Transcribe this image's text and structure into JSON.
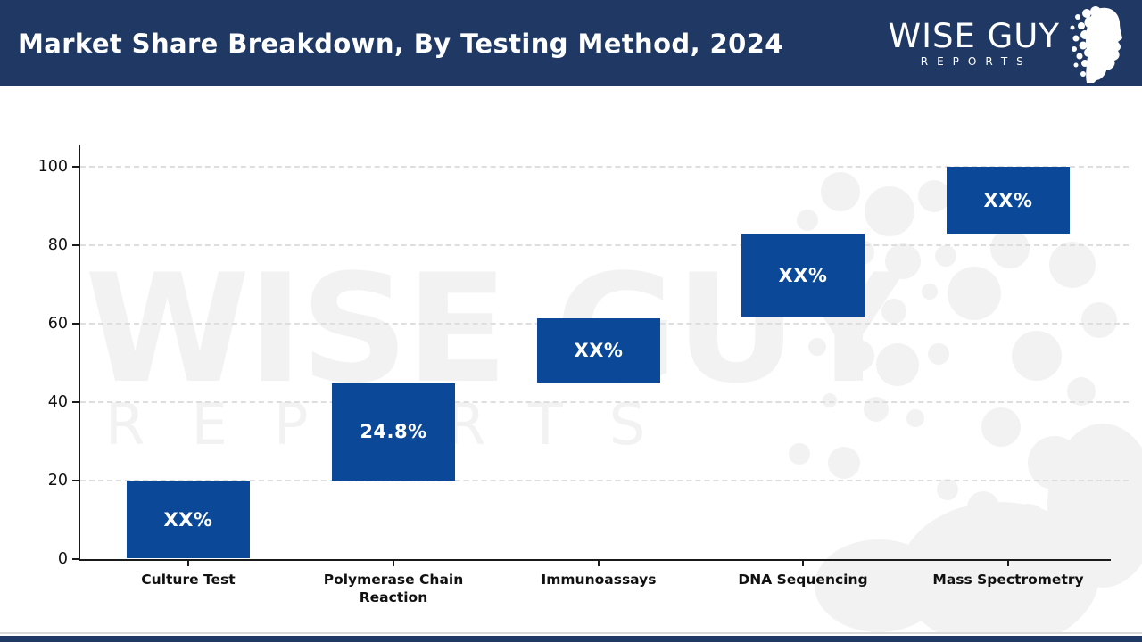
{
  "header": {
    "title": "Market Share Breakdown, By Testing Method, 2024",
    "logo": {
      "name": "WISE GUY",
      "subtitle": "REPORTS"
    }
  },
  "watermark": {
    "word": "WISE GUY",
    "subtitle": "REPORTS"
  },
  "colors": {
    "header_bg": "#1f3864",
    "footer_bg": "#1f3864",
    "bar_blue": "#0b4898",
    "bar_label_text": "#ffffff",
    "axis": "#1a1a1a",
    "gridline": "#dedede",
    "watermark": "#f2f2f2"
  },
  "chart_data": {
    "type": "bar",
    "subtype": "waterfall",
    "title": "Market Share Breakdown, By Testing Method, 2024",
    "xlabel": "",
    "ylabel": "",
    "ylim": [
      0,
      100
    ],
    "yticks": [
      0,
      20,
      40,
      60,
      80,
      100
    ],
    "grid": "horizontal-dashed",
    "legend": "none",
    "categories": [
      "Culture Test",
      "Polymerase Chain Reaction",
      "Immunoassays",
      "DNA Sequencing",
      "Mass Spectrometry"
    ],
    "bars": [
      {
        "category": "Culture Test",
        "start": 0,
        "end": 20,
        "value": 20,
        "label": "XX%"
      },
      {
        "category": "Polymerase Chain Reaction",
        "start": 20,
        "end": 44.8,
        "value": 24.8,
        "label": "24.8%"
      },
      {
        "category": "Immunoassays",
        "start": 44.9,
        "end": 61.3,
        "value": 16.4,
        "label": "XX%"
      },
      {
        "category": "DNA Sequencing",
        "start": 61.8,
        "end": 82.9,
        "value": 21.1,
        "label": "XX%"
      },
      {
        "category": "Mass Spectrometry",
        "start": 82.9,
        "end": 100,
        "value": 17.1,
        "label": "XX%"
      }
    ]
  }
}
